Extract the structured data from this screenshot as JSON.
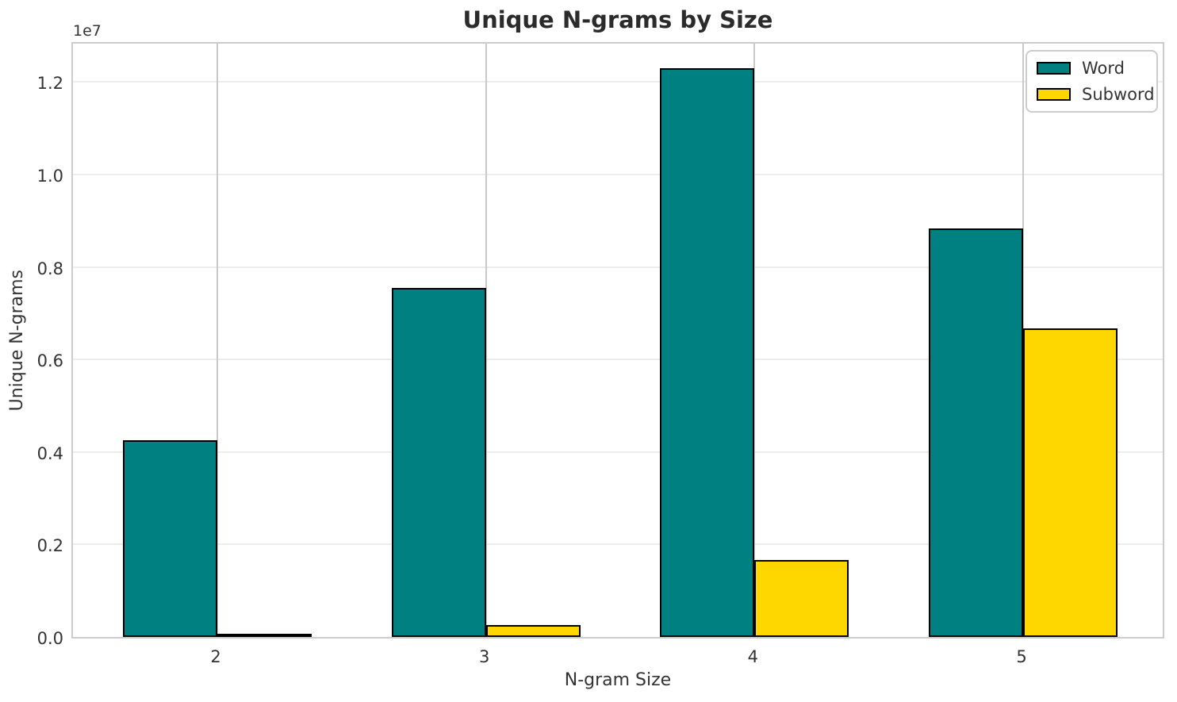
{
  "chart_data": {
    "type": "bar",
    "title": "Unique N-grams by Size",
    "xlabel": "N-gram Size",
    "ylabel": "Unique N-grams",
    "y_offset_label": "1e7",
    "categories": [
      "2",
      "3",
      "4",
      "5"
    ],
    "series": [
      {
        "name": "Word",
        "color": "#008080",
        "values": [
          4260000,
          7550000,
          12300000,
          8840000
        ]
      },
      {
        "name": "Subword",
        "color": "#FFD700",
        "values": [
          40000,
          260000,
          1660000,
          6670000
        ]
      }
    ],
    "bar_edge_color": "#000000",
    "ylim": [
      0,
      12900000
    ],
    "ytick_values": [
      0,
      2000000,
      4000000,
      6000000,
      8000000,
      10000000,
      12000000
    ],
    "ytick_labels": [
      "0.0",
      "0.2",
      "0.4",
      "0.6",
      "0.8",
      "1.0",
      "1.2"
    ],
    "grid": true,
    "legend_position": "upper right"
  }
}
